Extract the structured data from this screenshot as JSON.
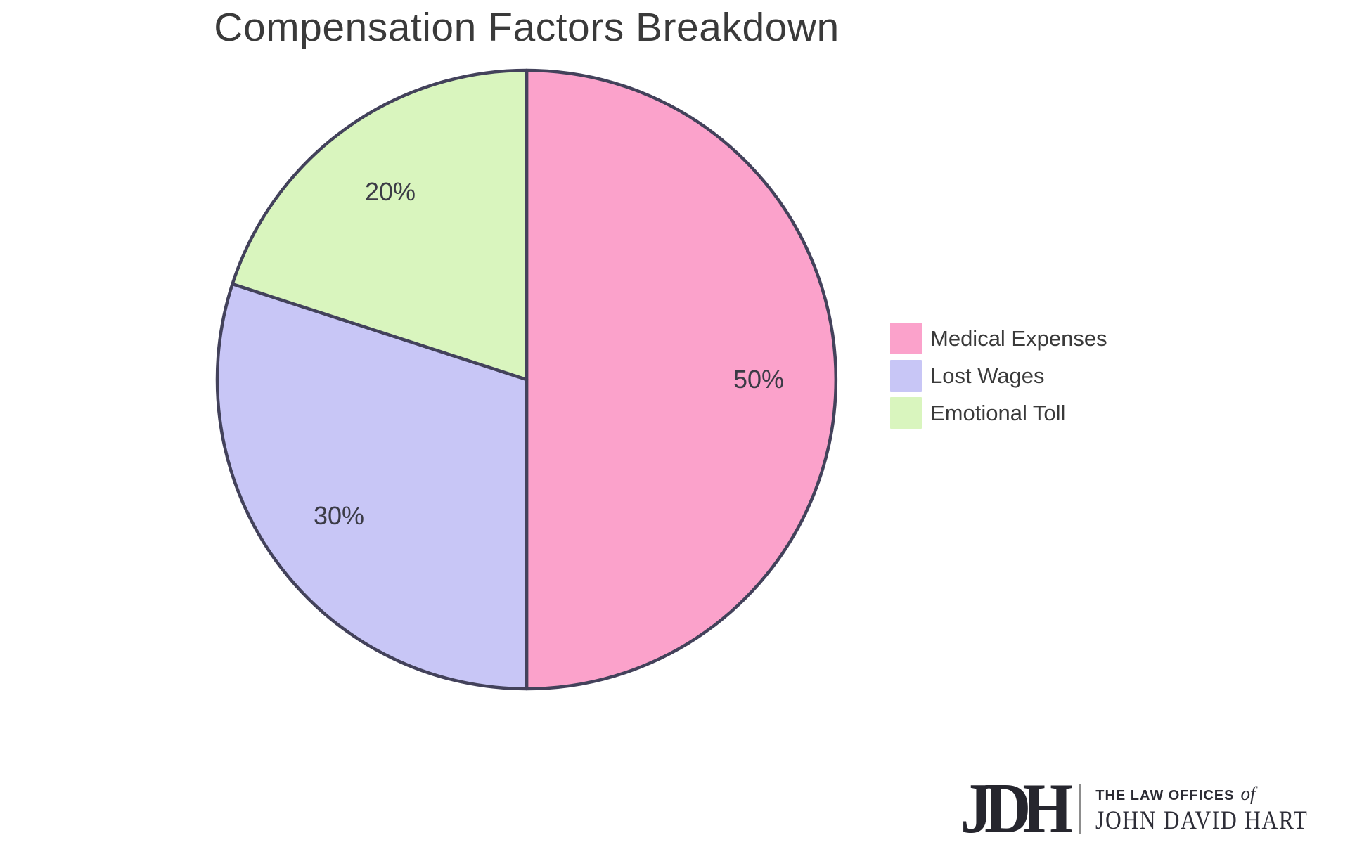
{
  "chart_data": {
    "type": "pie",
    "title": "Compensation Factors Breakdown",
    "labels": [
      "Medical Expenses",
      "Lost Wages",
      "Emotional Toll"
    ],
    "values": [
      50,
      30,
      20
    ],
    "value_labels": [
      "50%",
      "30%",
      "20%"
    ],
    "colors": [
      "#FBA2CB",
      "#C8C6F6",
      "#D9F5BE"
    ],
    "slice_border_color": "#43425B",
    "slice_border_width": 4.5,
    "slice_label_color": "#3b3b46",
    "start_angle_deg": 0,
    "direction": "clockwise",
    "legend_position": "right",
    "label_radius_fraction": 0.75
  },
  "branding": {
    "monogram": "JDH",
    "line1_caps": "THE LAW OFFICES",
    "line1_italic": "of",
    "line2": "JOHN DAVID HART"
  }
}
